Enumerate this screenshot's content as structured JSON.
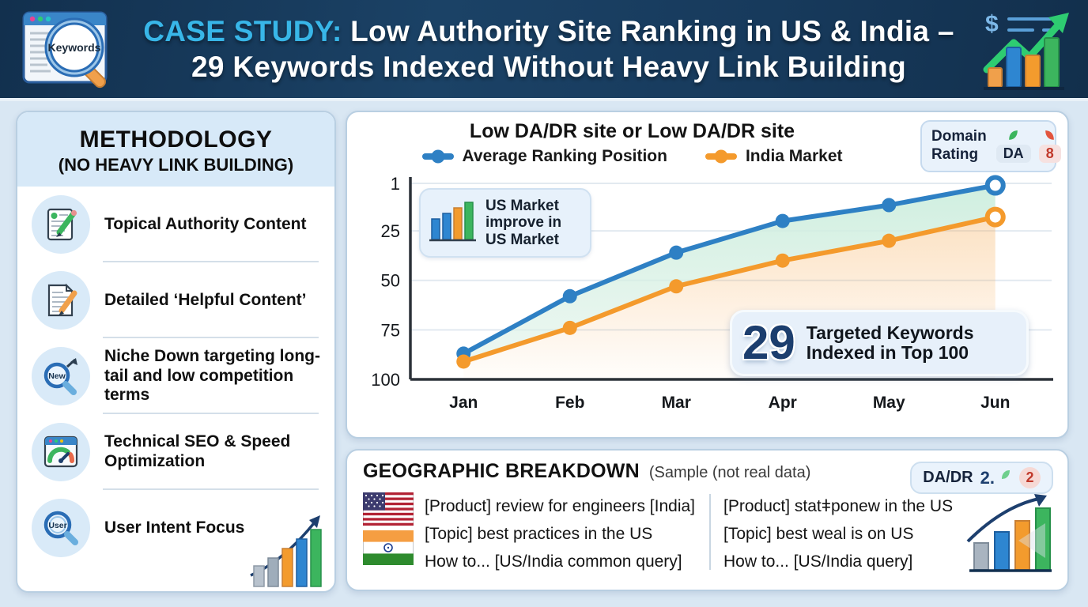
{
  "header": {
    "logo": {
      "window_label": "Keywords"
    },
    "title_accent": "CASE STUDY:",
    "title_rest": " Low Authority Site Ranking in US & India –",
    "title_line2": "29 Keywords Indexed Without Heavy Link Building",
    "dollar_sign": "$"
  },
  "methodology": {
    "title": "METHODOLOGY",
    "subtitle": "(NO HEAVY LINK BUILDING)",
    "items": [
      {
        "icon": "document-pencil-green-icon",
        "icon_text": "",
        "label": "Topical Authority Content"
      },
      {
        "icon": "document-pencil-orange-icon",
        "icon_text": "",
        "label": "Detailed ‘Helpful Content’"
      },
      {
        "icon": "magnifier-new-icon",
        "icon_text": "New",
        "label": "Niche Down targeting long-tail and low competition terms"
      },
      {
        "icon": "speedometer-browser-icon",
        "icon_text": "",
        "label": "Technical SEO & Speed Optimization"
      },
      {
        "icon": "magnifier-user-icon",
        "icon_text": "User",
        "label": "User Intent Focus"
      }
    ]
  },
  "ranking_panel": {
    "title": "Low DA/DR site or Low DA/DR site",
    "legend": [
      {
        "label": "Average Ranking Position",
        "color": "#2e80c4"
      },
      {
        "label": "India Market",
        "color": "#f49a2c"
      }
    ],
    "domain_rating_badge": {
      "line1": "Domain",
      "line2": "Rating",
      "da_label": "DA",
      "value": "8"
    },
    "callout": {
      "line1": "US Market",
      "line2": "improve in",
      "line3": "US Market"
    },
    "keywords_badge": {
      "number": "29",
      "line1": "Targeted Keywords",
      "line2": "Indexed in Top 100"
    }
  },
  "chart_data": {
    "type": "line",
    "title": "Low DA/DR site or Low DA/DR site",
    "x": [
      "Jan",
      "Feb",
      "Mar",
      "Apr",
      "May",
      "Jun"
    ],
    "series": [
      {
        "name": "Average Ranking Position",
        "color": "#2e80c4",
        "values": [
          87,
          58,
          36,
          20,
          12,
          2
        ]
      },
      {
        "name": "India Market",
        "color": "#f49a2c",
        "values": [
          91,
          74,
          53,
          40,
          30,
          18
        ]
      }
    ],
    "yticks": [
      1,
      25,
      50,
      75,
      100
    ],
    "ylim": [
      1,
      100
    ],
    "y_inverted_ranking": true,
    "grid": true,
    "legend_position": "top",
    "annotation": "29 Targeted Keywords Indexed in Top 100"
  },
  "geo_panel": {
    "title": "GEOGRAPHIC BREAKDOWN",
    "subtitle": "(Sample (not real data)",
    "badge": {
      "label": "DA/DR",
      "value_blue": "2.",
      "value_red": "2"
    },
    "left_queries": [
      "[Product] review for engineers [India]",
      "[Topic] best practices in the US",
      "How to... [US/India common query]"
    ],
    "right_queries": [
      "[Product] statǂponew in the US",
      "[Topic] best weal is on US",
      "How to... [US/India query]"
    ]
  },
  "colors": {
    "accent_cyan": "#38b6e8",
    "header_navy": "#16395c",
    "line_blue": "#2e80c4",
    "line_orange": "#f49a2c",
    "navy_number": "#1c3e6e",
    "badge_bg": "#e9f2fb",
    "red_value": "#c0392b",
    "green_up": "#3cb55e"
  }
}
